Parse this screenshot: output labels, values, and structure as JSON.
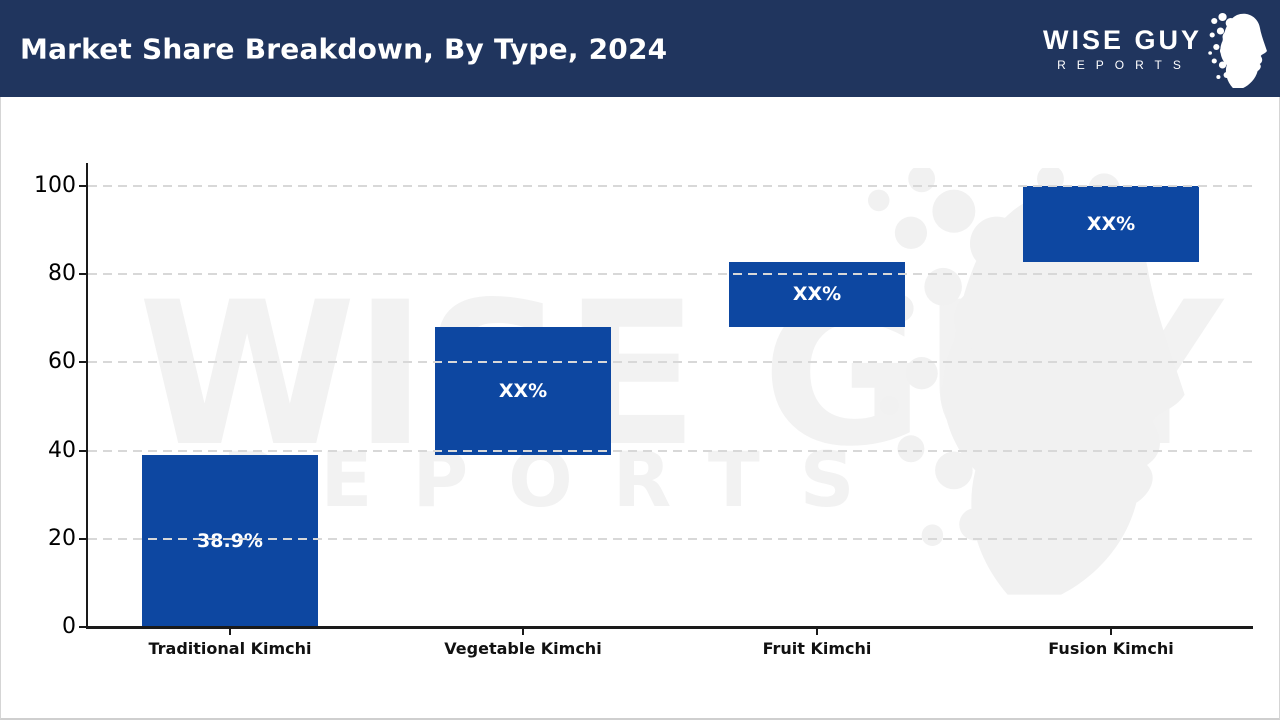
{
  "header": {
    "title": "Market Share Breakdown, By Type, 2024",
    "bg_color": "#20355E",
    "logo": {
      "line1": "WISE GUY",
      "line2": "REPORTS"
    }
  },
  "watermark": {
    "line1": "WISE GUY",
    "line2": "REPORTS"
  },
  "chart_data": {
    "type": "bar",
    "subtype": "waterfall",
    "title": "Market Share Breakdown, By Type, 2024",
    "categories": [
      "Traditional Kimchi",
      "Vegetable Kimchi",
      "Fruit Kimchi",
      "Fusion Kimchi"
    ],
    "segments": [
      {
        "category": "Traditional Kimchi",
        "start": 0,
        "end": 38.9,
        "label": "38.9%"
      },
      {
        "category": "Vegetable Kimchi",
        "start": 38.9,
        "end": 68.0,
        "label": "XX%"
      },
      {
        "category": "Fruit Kimchi",
        "start": 68.0,
        "end": 82.8,
        "label": "XX%"
      },
      {
        "category": "Fusion Kimchi",
        "start": 82.8,
        "end": 100.0,
        "label": "XX%"
      }
    ],
    "yticks": [
      0,
      20,
      40,
      60,
      80,
      100
    ],
    "ylim": [
      0,
      105
    ],
    "xlabel": "",
    "ylabel": "",
    "grid": "horizontal-dashed",
    "legend": "none",
    "bar_color": "#0D47A1",
    "bar_label_color": "#FFFFFF",
    "axis_color": "#1a1a1a",
    "gridline_color": "#d8d8d8",
    "watermark_color": "#f2f2f2"
  }
}
